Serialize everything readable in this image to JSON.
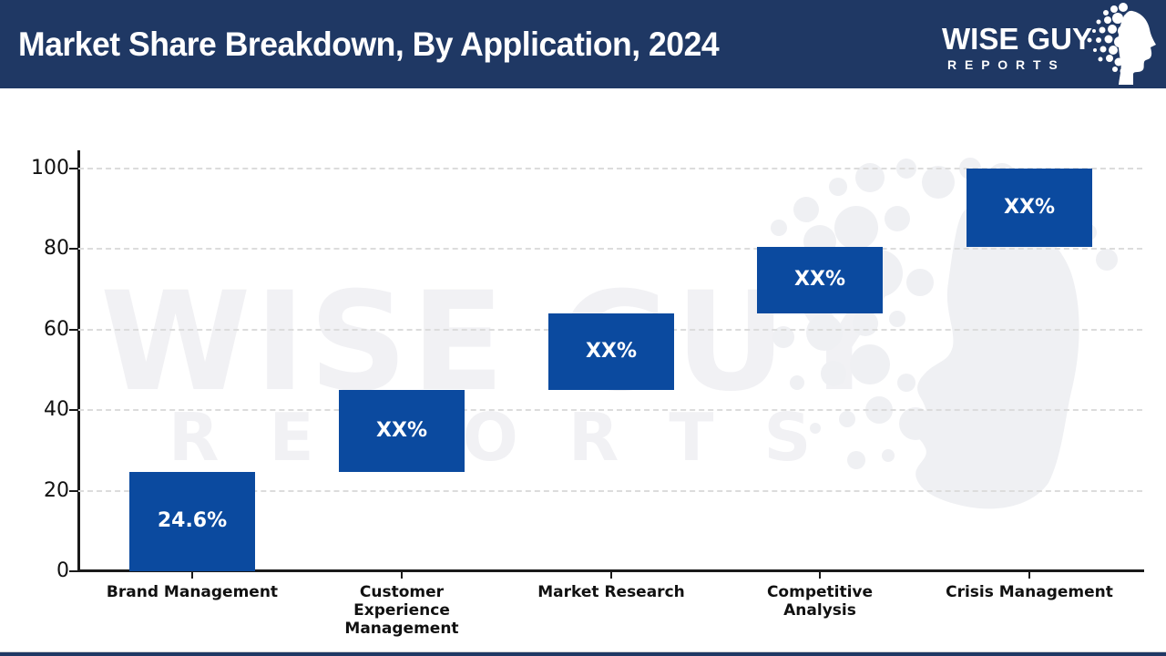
{
  "header": {
    "title": "Market Share Breakdown, By Application, 2024",
    "logo_line1": "WISE GUY",
    "logo_line2": "R E P O R T S"
  },
  "watermark": {
    "line1": "WISE GUY",
    "line2": "R E P O R T S"
  },
  "colors": {
    "brand_navy": "#1f3864",
    "bar_blue": "#0b4a9f",
    "bar_label_white": "#ffffff",
    "gridline_gray": "#dcdcdc",
    "axis_black": "#1a1a1a",
    "watermark_gray": "#f1f1f4"
  },
  "chart_data": {
    "type": "bar",
    "subtype": "waterfall-stepped",
    "title": "Market Share Breakdown, By Application, 2024",
    "xlabel": "",
    "ylabel": "",
    "ylim": [
      0,
      100
    ],
    "yticks": [
      0,
      20,
      40,
      60,
      80,
      100
    ],
    "grid": "horizontal dashed",
    "legend": "none",
    "bar_color": "#0b4a9f",
    "label_color": "#ffffff",
    "categories": [
      "Brand Management",
      "Customer Experience Management",
      "Market Research",
      "Competitive Analysis",
      "Crisis Management"
    ],
    "segments": [
      {
        "category": "Brand Management",
        "category_lines": [
          "Brand Management"
        ],
        "start": 0,
        "end": 24.6,
        "label": "24.6%"
      },
      {
        "category": "Customer Experience Management",
        "category_lines": [
          "Customer",
          "Experience",
          "Management"
        ],
        "start": 24.6,
        "end": 45,
        "label": "XX%"
      },
      {
        "category": "Market Research",
        "category_lines": [
          "Market Research"
        ],
        "start": 45,
        "end": 64,
        "label": "XX%"
      },
      {
        "category": "Competitive Analysis",
        "category_lines": [
          "Competitive",
          "Analysis"
        ],
        "start": 64,
        "end": 80.5,
        "label": "XX%"
      },
      {
        "category": "Crisis Management",
        "category_lines": [
          "Crisis Management"
        ],
        "start": 80.5,
        "end": 100,
        "label": "XX%"
      }
    ]
  }
}
